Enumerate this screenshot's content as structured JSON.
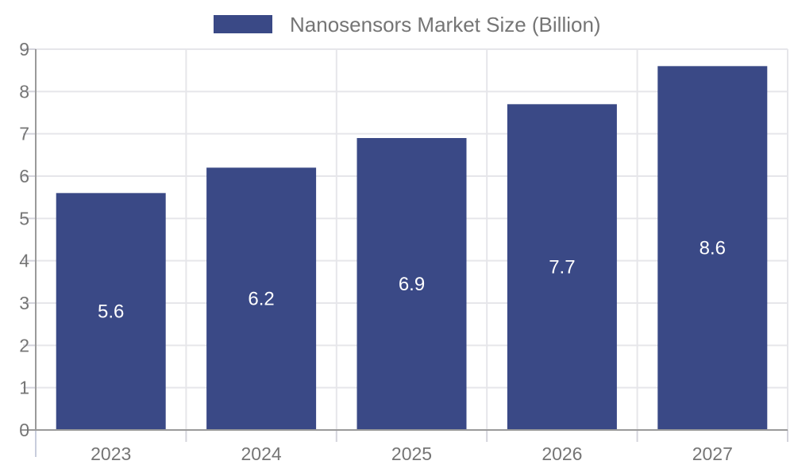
{
  "chart_data": {
    "type": "bar",
    "title": "Nanosensors Market Size (Billion)",
    "categories": [
      "2023",
      "2024",
      "2025",
      "2026",
      "2027"
    ],
    "values": [
      5.6,
      6.2,
      6.9,
      7.7,
      8.6
    ],
    "bar_value_labels": [
      "5.6",
      "6.2",
      "6.9",
      "7.7",
      "8.6"
    ],
    "y_tick_labels": [
      "0",
      "1",
      "2",
      "3",
      "4",
      "5",
      "6",
      "7",
      "8",
      "9"
    ],
    "xlabel": "",
    "ylabel": "",
    "ylim": [
      0,
      9
    ],
    "ytick_step": 1,
    "grid": true,
    "legend_position": "top",
    "bar_color": "#3A4986",
    "bar_label_color": "#FFFFFF",
    "axis_text_color": "#757575",
    "grid_color": "#E6E6EA",
    "axis_line_color": "#9A9A9A",
    "tick_color": "#D4D4DC",
    "origin_tick_color": "#C8CDDC"
  }
}
